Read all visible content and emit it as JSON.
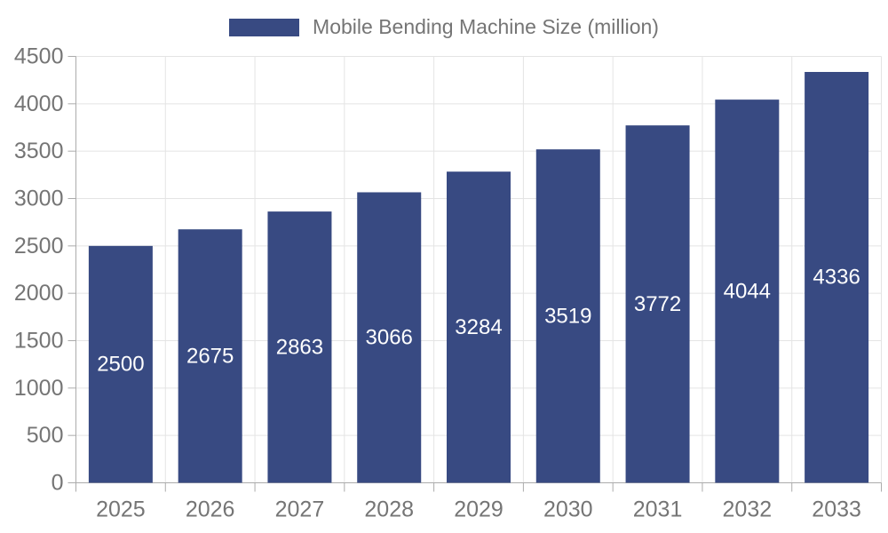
{
  "chart_data": {
    "type": "bar",
    "title": "Mobile Bending Machine Size (million)",
    "categories": [
      "2025",
      "2026",
      "2027",
      "2028",
      "2029",
      "2030",
      "2031",
      "2032",
      "2033"
    ],
    "values": [
      2500,
      2675,
      2863,
      3066,
      3284,
      3519,
      3772,
      4044,
      4336
    ],
    "xlabel": "",
    "ylabel": "",
    "ylim": [
      0,
      4500
    ],
    "ytick_step": 500,
    "ytick_labels": [
      "0",
      "500",
      "1000",
      "1500",
      "2000",
      "2500",
      "3000",
      "3500",
      "4000",
      "4500"
    ],
    "grid": "horizontal-and-vertical",
    "legend_position": "top-center",
    "bar_label_position": "inside-center",
    "colors": {
      "bar": "#384A82",
      "bar_label": "#FFFFFF",
      "axis_label": "#757575",
      "legend_text": "#757575",
      "axis_line": "#ABABAB",
      "gridline": "#E4E4E4",
      "background": "#FFFFFF"
    }
  }
}
